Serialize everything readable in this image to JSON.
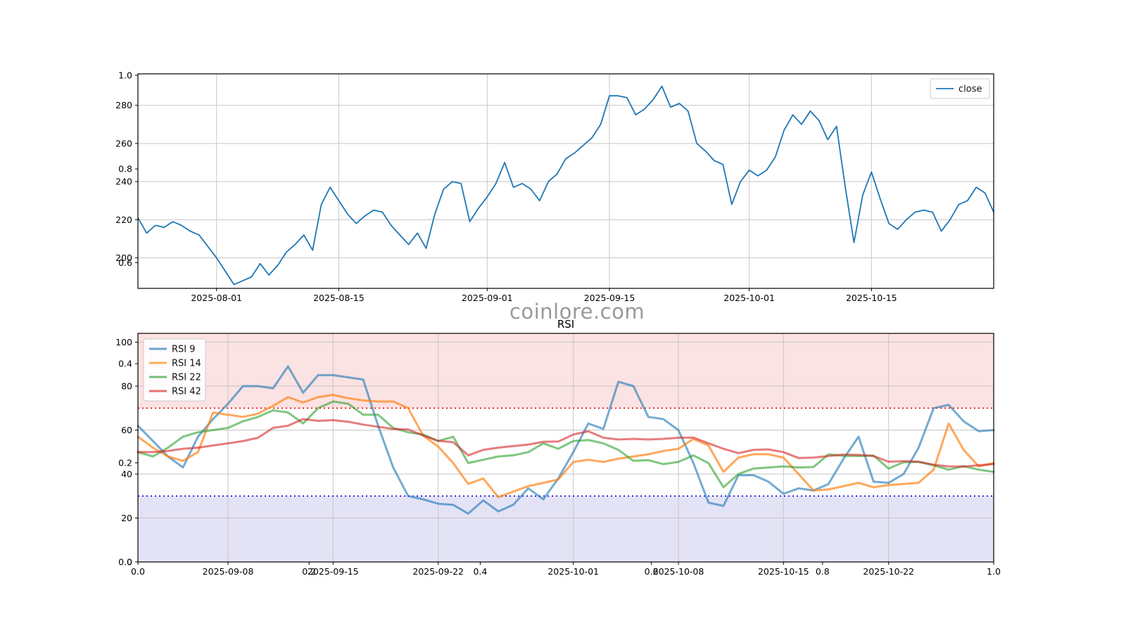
{
  "watermark": "coinlore.com",
  "chart_data": [
    {
      "type": "line",
      "name": "close-price-chart",
      "title": "",
      "grid": true,
      "legend": {
        "position": "top-right",
        "entries": [
          {
            "label": "close",
            "color": "#1f77b4"
          }
        ]
      },
      "ylabel_ticks": [
        200,
        220,
        240,
        260,
        280
      ],
      "ylim": [
        184,
        296.5
      ],
      "y2_ticks": [
        {
          "label": "1.0",
          "v": 1.0
        },
        {
          "label": "0.8",
          "v": 0.8
        },
        {
          "label": "0.6",
          "v": 0.6
        }
      ],
      "y2lim": [
        0.545,
        1.003
      ],
      "x_ticks": [
        {
          "label": "2025-08-01",
          "day": 9
        },
        {
          "label": "2025-08-15",
          "day": 23
        },
        {
          "label": "2025-09-01",
          "day": 40
        },
        {
          "label": "2025-09-15",
          "day": 54
        },
        {
          "label": "2025-10-01",
          "day": 70
        },
        {
          "label": "2025-10-15",
          "day": 84
        }
      ],
      "x_domain": [
        0,
        98
      ],
      "series": [
        {
          "name": "close",
          "color": "#1f77b4",
          "width": 1.8,
          "opacity": 1,
          "values": [
            221,
            213,
            217,
            216,
            219,
            217,
            214,
            212,
            206,
            200,
            193,
            186,
            188,
            190,
            197,
            191,
            196,
            203,
            207,
            212,
            204,
            228,
            237,
            230,
            223,
            218,
            222,
            225,
            224,
            217,
            212,
            207,
            213,
            205,
            223,
            236,
            240,
            239,
            219,
            226,
            232,
            239,
            250,
            237,
            239,
            236,
            230,
            240,
            244,
            252,
            255,
            259,
            263,
            270,
            285,
            285,
            284,
            275,
            278,
            283,
            290,
            279,
            281,
            277,
            260,
            256,
            251,
            249,
            228,
            240,
            246,
            243,
            246,
            253,
            267,
            275,
            270,
            277,
            272,
            262,
            269,
            237,
            208,
            233,
            245,
            231,
            218,
            215,
            220,
            224,
            225,
            224,
            214,
            220,
            228,
            230,
            237,
            234,
            224
          ]
        }
      ]
    },
    {
      "type": "line",
      "name": "rsi-chart",
      "title": "RSI",
      "grid": true,
      "legend": {
        "position": "top-left",
        "entries": [
          {
            "label": "RSI 9",
            "color": "#1f77b4"
          },
          {
            "label": "RSI 14",
            "color": "#ff7f0e"
          },
          {
            "label": "RSI 22",
            "color": "#2ca02c"
          },
          {
            "label": "RSI 42",
            "color": "#d62728"
          }
        ]
      },
      "ylabel_ticks": [
        0,
        20,
        40,
        60,
        80,
        100
      ],
      "ylim": [
        0,
        104
      ],
      "y2_ticks": [
        {
          "label": "0.4",
          "v": 0.4
        },
        {
          "label": "0.2",
          "v": 0.2
        },
        {
          "label": "0.0",
          "v": 0.0
        }
      ],
      "y2lim": [
        0,
        0.461
      ],
      "x_ticks": [
        {
          "label": "2025-09-08",
          "day": 6
        },
        {
          "label": "2025-09-15",
          "day": 13
        },
        {
          "label": "2025-09-22",
          "day": 20
        },
        {
          "label": "2025-10-01",
          "day": 29
        },
        {
          "label": "2025-10-08",
          "day": 36
        },
        {
          "label": "2025-10-15",
          "day": 43
        },
        {
          "label": "2025-10-22",
          "day": 50
        }
      ],
      "x2_ticks": [
        {
          "label": "0.0",
          "t": 0.0
        },
        {
          "label": "0.2",
          "t": 0.2
        },
        {
          "label": "0.4",
          "t": 0.4
        },
        {
          "label": "0.6",
          "t": 0.6
        },
        {
          "label": "0.8",
          "t": 0.8
        },
        {
          "label": "1.0",
          "t": 1.0
        }
      ],
      "x_domain": [
        0,
        57
      ],
      "overbought": {
        "level": 70,
        "line_color": "#ec0000",
        "band_color": "#fbe2e3"
      },
      "oversold": {
        "level": 30,
        "line_color": "#0000dd",
        "band_color": "#e4e3f6"
      },
      "series": [
        {
          "name": "RSI 9",
          "color": "#1f77b4",
          "width": 3,
          "opacity": 0.62,
          "values": [
            62,
            55,
            48,
            43,
            57,
            65,
            72,
            80,
            80,
            79,
            89,
            77,
            85,
            85,
            84,
            83,
            62,
            43,
            30,
            28.5,
            26.5,
            26,
            22,
            28,
            23,
            26,
            33.5,
            28.5,
            38,
            50,
            63,
            60.5,
            82,
            80,
            66,
            65,
            60,
            45,
            27,
            25.5,
            39.5,
            39.5,
            36.5,
            31,
            33.5,
            32.5,
            35.5,
            47,
            57,
            36.5,
            36,
            40,
            52,
            70,
            71.5,
            64,
            59.5,
            60
          ]
        },
        {
          "name": "RSI 14",
          "color": "#ff7f0e",
          "width": 3,
          "opacity": 0.68,
          "values": [
            57,
            52,
            48,
            46,
            50,
            68,
            67,
            66,
            67.5,
            71,
            75,
            72.5,
            75,
            76,
            74.5,
            73.5,
            73,
            73,
            70,
            57.5,
            52.5,
            45,
            35.5,
            38,
            29.5,
            32,
            34.5,
            36,
            37.5,
            45.5,
            46.5,
            45.5,
            47,
            48,
            49,
            50.5,
            51.5,
            56,
            53,
            41,
            47.5,
            49,
            49,
            47.5,
            40,
            32.5,
            33,
            34.5,
            36,
            34,
            35,
            35.5,
            36,
            42,
            63,
            51,
            43.5,
            45
          ]
        },
        {
          "name": "RSI 22",
          "color": "#2ca02c",
          "width": 3,
          "opacity": 0.6,
          "values": [
            50,
            48,
            52,
            57,
            59,
            60,
            61,
            64,
            66,
            69,
            68,
            63,
            70,
            73,
            72,
            67,
            67,
            61,
            59,
            58,
            55,
            57,
            45,
            46.5,
            48,
            48.5,
            50,
            54,
            51.5,
            55,
            55.5,
            54,
            51,
            46,
            46.3,
            44.5,
            45.5,
            48.5,
            45,
            34,
            40,
            42.5,
            43,
            43.5,
            43,
            43.2,
            49,
            48.3,
            48.2,
            48.4,
            42.5,
            45.4,
            45.5,
            44,
            42,
            43.6,
            42,
            41
          ]
        },
        {
          "name": "RSI 42",
          "color": "#d62728",
          "width": 3,
          "opacity": 0.6,
          "values": [
            50,
            50,
            50.5,
            51.5,
            52,
            53,
            54,
            55,
            56.5,
            61,
            62,
            65,
            64.2,
            64.5,
            63.8,
            62.5,
            61.5,
            60.5,
            60.3,
            57.5,
            55.1,
            54.5,
            48.5,
            51,
            52,
            52.7,
            53.4,
            54.7,
            54.8,
            58,
            59.5,
            56.5,
            55.7,
            56,
            55.7,
            56,
            56.5,
            56.6,
            54,
            51.5,
            49.5,
            51,
            51.2,
            50,
            47.3,
            47.5,
            48.2,
            48.9,
            48.7,
            48.2,
            45.6,
            45.9,
            45.6,
            44.2,
            43.5,
            43.4,
            44,
            44.5
          ]
        }
      ]
    }
  ]
}
